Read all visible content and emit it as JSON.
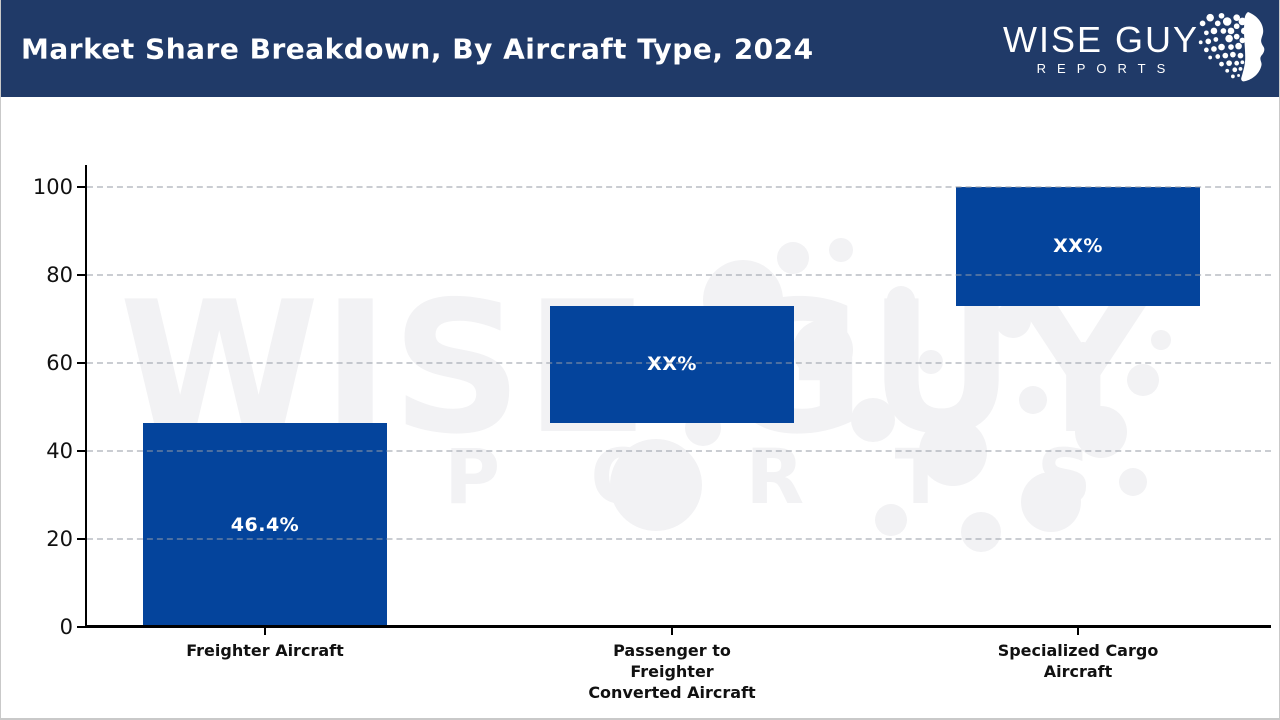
{
  "header": {
    "title": "Market Share Breakdown, By Aircraft Type, 2024",
    "logo": {
      "line1": "WISE GUY",
      "line2": "REPORTS"
    }
  },
  "watermark": {
    "line1": "WISE GUY",
    "line2": "R E P O R T S"
  },
  "colors": {
    "header_bg": "#203a68",
    "bar": "#04449c",
    "bar_label_text": "#ffffff",
    "grid": "#b9bdc4",
    "axis": "#000000",
    "title_text": "#ffffff",
    "watermark": "#f2f2f4"
  },
  "chart_data": {
    "type": "bar",
    "variant": "waterfall",
    "title": "Market Share Breakdown, By Aircraft Type, 2024",
    "categories": [
      "Freighter Aircraft",
      "Passenger to Freighter Converted Aircraft",
      "Specialized Cargo Aircraft"
    ],
    "categories_lines": [
      [
        "Freighter Aircraft"
      ],
      [
        "Passenger to",
        "Freighter",
        "Converted Aircraft"
      ],
      [
        "Specialized Cargo",
        "Aircraft"
      ]
    ],
    "segments": [
      {
        "start": 0,
        "end": 46.4
      },
      {
        "start": 46.4,
        "end": 73
      },
      {
        "start": 73,
        "end": 100
      }
    ],
    "bar_labels": [
      "46.4%",
      "XX%",
      "XX%"
    ],
    "ylim": [
      0,
      100
    ],
    "yticks": [
      0,
      20,
      40,
      60,
      80,
      100
    ],
    "xlabel": "",
    "ylabel": "",
    "grid": "horizontal-dashed",
    "legend": "none"
  }
}
